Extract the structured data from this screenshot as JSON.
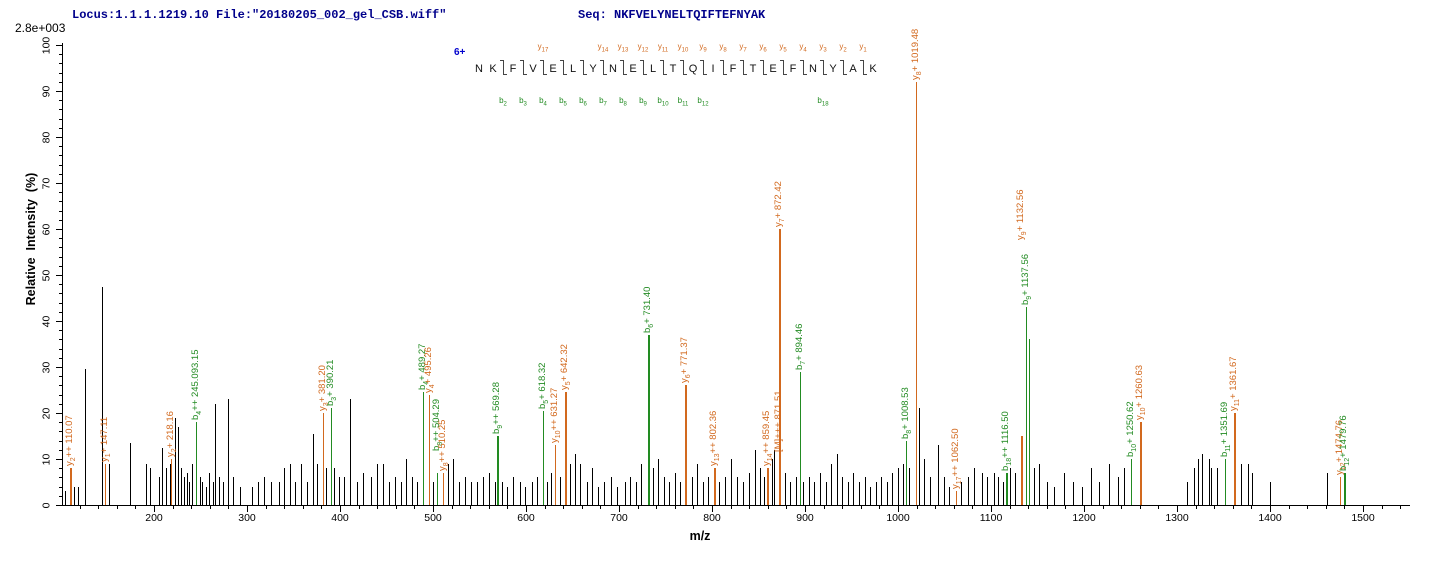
{
  "header": {
    "locus_file": "Locus:1.1.1.1219.10 File:\"20180205_002_gel_CSB.wiff\"",
    "seq_line": "Seq: NKFVELYNELTQIFTEFNYAK"
  },
  "colors": {
    "y_ion": "#D2691E",
    "b_ion": "#228B22",
    "peak": "#000000",
    "header_text": "#00008B",
    "charge_text": "#0000CD",
    "axis": "#000000"
  },
  "ladder": {
    "charge": "6+",
    "residues": [
      "N",
      "K",
      "F",
      "V",
      "E",
      "L",
      "Y",
      "N",
      "E",
      "L",
      "T",
      "Q",
      "I",
      "F",
      "T",
      "E",
      "F",
      "N",
      "Y",
      "A",
      "K"
    ],
    "separators": [
      {
        "after": 2,
        "b": "b2"
      },
      {
        "after": 3,
        "b": "b3"
      },
      {
        "after": 4,
        "b": "b4",
        "y": "y17"
      },
      {
        "after": 5,
        "b": "b5"
      },
      {
        "after": 6,
        "b": "b6"
      },
      {
        "after": 7,
        "b": "b7",
        "y": "y14"
      },
      {
        "after": 8,
        "b": "b8",
        "y": "y13"
      },
      {
        "after": 9,
        "b": "b9",
        "y": "y12"
      },
      {
        "after": 10,
        "b": "b10",
        "y": "y11"
      },
      {
        "after": 11,
        "b": "b11",
        "y": "y10"
      },
      {
        "after": 12,
        "b": "b12",
        "y": "y9"
      },
      {
        "after": 13,
        "y": "y8"
      },
      {
        "after": 14,
        "y": "y7"
      },
      {
        "after": 15,
        "y": "y6"
      },
      {
        "after": 16,
        "y": "y5"
      },
      {
        "after": 17,
        "y": "y4"
      },
      {
        "after": 18,
        "b": "b18",
        "y": "y3"
      },
      {
        "after": 19,
        "y": "y2"
      },
      {
        "after": 20,
        "y": "y1"
      }
    ]
  },
  "chart_data": {
    "type": "bar",
    "subtype": "annotated-ms2-spectrum",
    "xlabel": "m/z",
    "ylabel": "Relative  Intensity  (%)",
    "intensity_max": "2.8e+003",
    "xlim": [
      101,
      1550
    ],
    "ylim": [
      0,
      100
    ],
    "grid": false,
    "x_axis": {
      "major_ticks": [
        200,
        300,
        400,
        500,
        600,
        700,
        800,
        900,
        1000,
        1100,
        1200,
        1300,
        1400,
        1500
      ],
      "minor_step": 20,
      "minor_start": 120,
      "minor_end": 1540
    },
    "y_axis": {
      "major_ticks": [
        0,
        10,
        20,
        30,
        40,
        50,
        60,
        70,
        80,
        90,
        100
      ],
      "minor_step": 2
    },
    "labeled_peaks": [
      {
        "label": "y2++ 110.07",
        "mz": 110.07,
        "h": 8,
        "t": "y"
      },
      {
        "label": "y1+ 147.11",
        "mz": 147.11,
        "h": 9,
        "t": "y"
      },
      {
        "label": "y2+ 218.16",
        "mz": 218.16,
        "h": 10,
        "t": "y"
      },
      {
        "label": "b4++ 245.093.15",
        "mz": 245.09,
        "h": 18,
        "t": "b"
      },
      {
        "label": "y3+ 381.20",
        "mz": 381.2,
        "h": 20,
        "t": "y"
      },
      {
        "label": "b3+ 390.21",
        "mz": 390.21,
        "h": 21,
        "t": "b"
      },
      {
        "label": "b4+ 489.27",
        "mz": 489.27,
        "h": 24.5,
        "t": "b"
      },
      {
        "label": "y4+ 495.26",
        "mz": 495.26,
        "h": 24,
        "t": "y"
      },
      {
        "label": "b8++ 504.29",
        "mz": 504.29,
        "h": 7,
        "t": "b",
        "lift": 20
      },
      {
        "label": "y8++ 510.25",
        "mz": 510.25,
        "h": 7,
        "t": "y"
      },
      {
        "label": "b9++ 569.28",
        "mz": 569.28,
        "h": 15,
        "t": "b"
      },
      {
        "label": "b5+ 618.32",
        "mz": 618.32,
        "h": 20.5,
        "t": "b"
      },
      {
        "label": "y10++ 631.27",
        "mz": 631.27,
        "h": 13,
        "t": "y"
      },
      {
        "label": "y5+ 642.32",
        "mz": 642.32,
        "h": 24.5,
        "t": "y"
      },
      {
        "label": "b6+ 731.40",
        "mz": 731.4,
        "h": 37,
        "t": "b"
      },
      {
        "label": "y6+ 771.37",
        "mz": 771.37,
        "h": 26,
        "t": "y"
      },
      {
        "label": "y13++ 802.36",
        "mz": 802.36,
        "h": 8,
        "t": "y"
      },
      {
        "label": "y14++ 859.45",
        "mz": 859.45,
        "h": 8,
        "t": "y"
      },
      {
        "label": "[M]+++ 871.51",
        "mz": 871.51,
        "h": 11,
        "t": "y"
      },
      {
        "label": "y7+ 872.42",
        "mz": 872.42,
        "h": 60,
        "t": "y"
      },
      {
        "label": "b7+ 894.46",
        "mz": 894.46,
        "h": 29,
        "t": "b"
      },
      {
        "label": "b8+ 1008.53",
        "mz": 1008.53,
        "h": 14,
        "t": "b"
      },
      {
        "label": "y8+ 1019.48",
        "mz": 1019.48,
        "h": 92,
        "t": "y"
      },
      {
        "label": "y17++ 1062.50",
        "mz": 1062.5,
        "h": 3,
        "t": "y"
      },
      {
        "label": "b18++ 1116.50",
        "mz": 1116.5,
        "h": 7,
        "t": "b"
      },
      {
        "label": "y9+ 1132.56",
        "mz": 1132.56,
        "h": 15,
        "t": "y",
        "lift": 194
      },
      {
        "label": "b9+ 1137.56",
        "mz": 1137.56,
        "h": 43,
        "t": "b"
      },
      {
        "label": "",
        "mz": 1140.5,
        "h": 36,
        "t": "b"
      },
      {
        "label": "b10+ 1250.62",
        "mz": 1250.62,
        "h": 10,
        "t": "b"
      },
      {
        "label": "y10+ 1260.63",
        "mz": 1260.63,
        "h": 18,
        "t": "y"
      },
      {
        "label": "b11+ 1351.69",
        "mz": 1351.69,
        "h": 10,
        "t": "b"
      },
      {
        "label": "y11+ 1361.67",
        "mz": 1361.67,
        "h": 20,
        "t": "y"
      },
      {
        "label": "y12+ 1474.76",
        "mz": 1474.76,
        "h": 6,
        "t": "y"
      },
      {
        "label": "b12+ 1479.76",
        "mz": 1479.76,
        "h": 7,
        "t": "b"
      }
    ],
    "unlabeled_peaks": [
      [
        104,
        3
      ],
      [
        114,
        4
      ],
      [
        118,
        4
      ],
      [
        126,
        29.5
      ],
      [
        144,
        47.5
      ],
      [
        152,
        9
      ],
      [
        174,
        13.5
      ],
      [
        191,
        9
      ],
      [
        196,
        8
      ],
      [
        205,
        6
      ],
      [
        209,
        12.5
      ],
      [
        213,
        8
      ],
      [
        217,
        9
      ],
      [
        222,
        19
      ],
      [
        226,
        17
      ],
      [
        229,
        8
      ],
      [
        232,
        6
      ],
      [
        235,
        7
      ],
      [
        238,
        5
      ],
      [
        241,
        9
      ],
      [
        245,
        16
      ],
      [
        249,
        6
      ],
      [
        252,
        5
      ],
      [
        256,
        4
      ],
      [
        259,
        7
      ],
      [
        263,
        5
      ],
      [
        266,
        22
      ],
      [
        270,
        6
      ],
      [
        274,
        5
      ],
      [
        280,
        23
      ],
      [
        285,
        6
      ],
      [
        292,
        4
      ],
      [
        305,
        4
      ],
      [
        312,
        5
      ],
      [
        318,
        6
      ],
      [
        326,
        5
      ],
      [
        334,
        5
      ],
      [
        340,
        8
      ],
      [
        346,
        9
      ],
      [
        352,
        5
      ],
      [
        358,
        9
      ],
      [
        364,
        5
      ],
      [
        371,
        15.5
      ],
      [
        375,
        9
      ],
      [
        385,
        8
      ],
      [
        394,
        8
      ],
      [
        399,
        6
      ],
      [
        404,
        6
      ],
      [
        411,
        23
      ],
      [
        418,
        5
      ],
      [
        425,
        7
      ],
      [
        433,
        6
      ],
      [
        440,
        9
      ],
      [
        446,
        9
      ],
      [
        453,
        5
      ],
      [
        459,
        6
      ],
      [
        465,
        5
      ],
      [
        471,
        10
      ],
      [
        477,
        6
      ],
      [
        483,
        5
      ],
      [
        500,
        5
      ],
      [
        516,
        9
      ],
      [
        521,
        10
      ],
      [
        528,
        5
      ],
      [
        534,
        6
      ],
      [
        541,
        5
      ],
      [
        547,
        5
      ],
      [
        554,
        6
      ],
      [
        560,
        7
      ],
      [
        567,
        5
      ],
      [
        574,
        5
      ],
      [
        580,
        4
      ],
      [
        586,
        6
      ],
      [
        593,
        5
      ],
      [
        599,
        4
      ],
      [
        606,
        5
      ],
      [
        612,
        6
      ],
      [
        622,
        5
      ],
      [
        627,
        7
      ],
      [
        637,
        6
      ],
      [
        647,
        9
      ],
      [
        653,
        11
      ],
      [
        658,
        9
      ],
      [
        665,
        5
      ],
      [
        671,
        8
      ],
      [
        677,
        4
      ],
      [
        684,
        5
      ],
      [
        691,
        6
      ],
      [
        698,
        4
      ],
      [
        706,
        5
      ],
      [
        712,
        6
      ],
      [
        718,
        5
      ],
      [
        724,
        9
      ],
      [
        737,
        8
      ],
      [
        742,
        10
      ],
      [
        748,
        6
      ],
      [
        754,
        5
      ],
      [
        760,
        7
      ],
      [
        766,
        5
      ],
      [
        778,
        6
      ],
      [
        784,
        9
      ],
      [
        790,
        5
      ],
      [
        796,
        6
      ],
      [
        808,
        5
      ],
      [
        814,
        6
      ],
      [
        820,
        10
      ],
      [
        827,
        6
      ],
      [
        833,
        5
      ],
      [
        840,
        7
      ],
      [
        846,
        12
      ],
      [
        852,
        8
      ],
      [
        856,
        6
      ],
      [
        864,
        10
      ],
      [
        867,
        12
      ],
      [
        878,
        7
      ],
      [
        884,
        5
      ],
      [
        890,
        6
      ],
      [
        898,
        5
      ],
      [
        904,
        6
      ],
      [
        910,
        5
      ],
      [
        916,
        7
      ],
      [
        922,
        5
      ],
      [
        928,
        9
      ],
      [
        934,
        11
      ],
      [
        940,
        6
      ],
      [
        946,
        5
      ],
      [
        952,
        7
      ],
      [
        958,
        5
      ],
      [
        964,
        6
      ],
      [
        970,
        4
      ],
      [
        976,
        5
      ],
      [
        982,
        6
      ],
      [
        988,
        5
      ],
      [
        994,
        7
      ],
      [
        1000,
        8
      ],
      [
        1005,
        9
      ],
      [
        1012,
        8
      ],
      [
        1023,
        21
      ],
      [
        1028,
        10
      ],
      [
        1034,
        6
      ],
      [
        1043,
        13
      ],
      [
        1049,
        6
      ],
      [
        1055,
        4
      ],
      [
        1068,
        5
      ],
      [
        1075,
        6
      ],
      [
        1082,
        8
      ],
      [
        1090,
        7
      ],
      [
        1096,
        6
      ],
      [
        1103,
        7
      ],
      [
        1108,
        6
      ],
      [
        1113,
        5
      ],
      [
        1120,
        8
      ],
      [
        1126,
        7
      ],
      [
        1146,
        8
      ],
      [
        1152,
        9
      ],
      [
        1160,
        5
      ],
      [
        1168,
        4
      ],
      [
        1178,
        7
      ],
      [
        1188,
        5
      ],
      [
        1198,
        4
      ],
      [
        1208,
        8
      ],
      [
        1216,
        5
      ],
      [
        1227,
        9
      ],
      [
        1236,
        6
      ],
      [
        1243,
        8
      ],
      [
        1311,
        5
      ],
      [
        1318,
        8
      ],
      [
        1323,
        10
      ],
      [
        1327,
        11
      ],
      [
        1334,
        10
      ],
      [
        1337,
        8
      ],
      [
        1343,
        8
      ],
      [
        1369,
        9
      ],
      [
        1376,
        9
      ],
      [
        1381,
        7
      ],
      [
        1400,
        5
      ],
      [
        1461,
        7
      ]
    ]
  }
}
